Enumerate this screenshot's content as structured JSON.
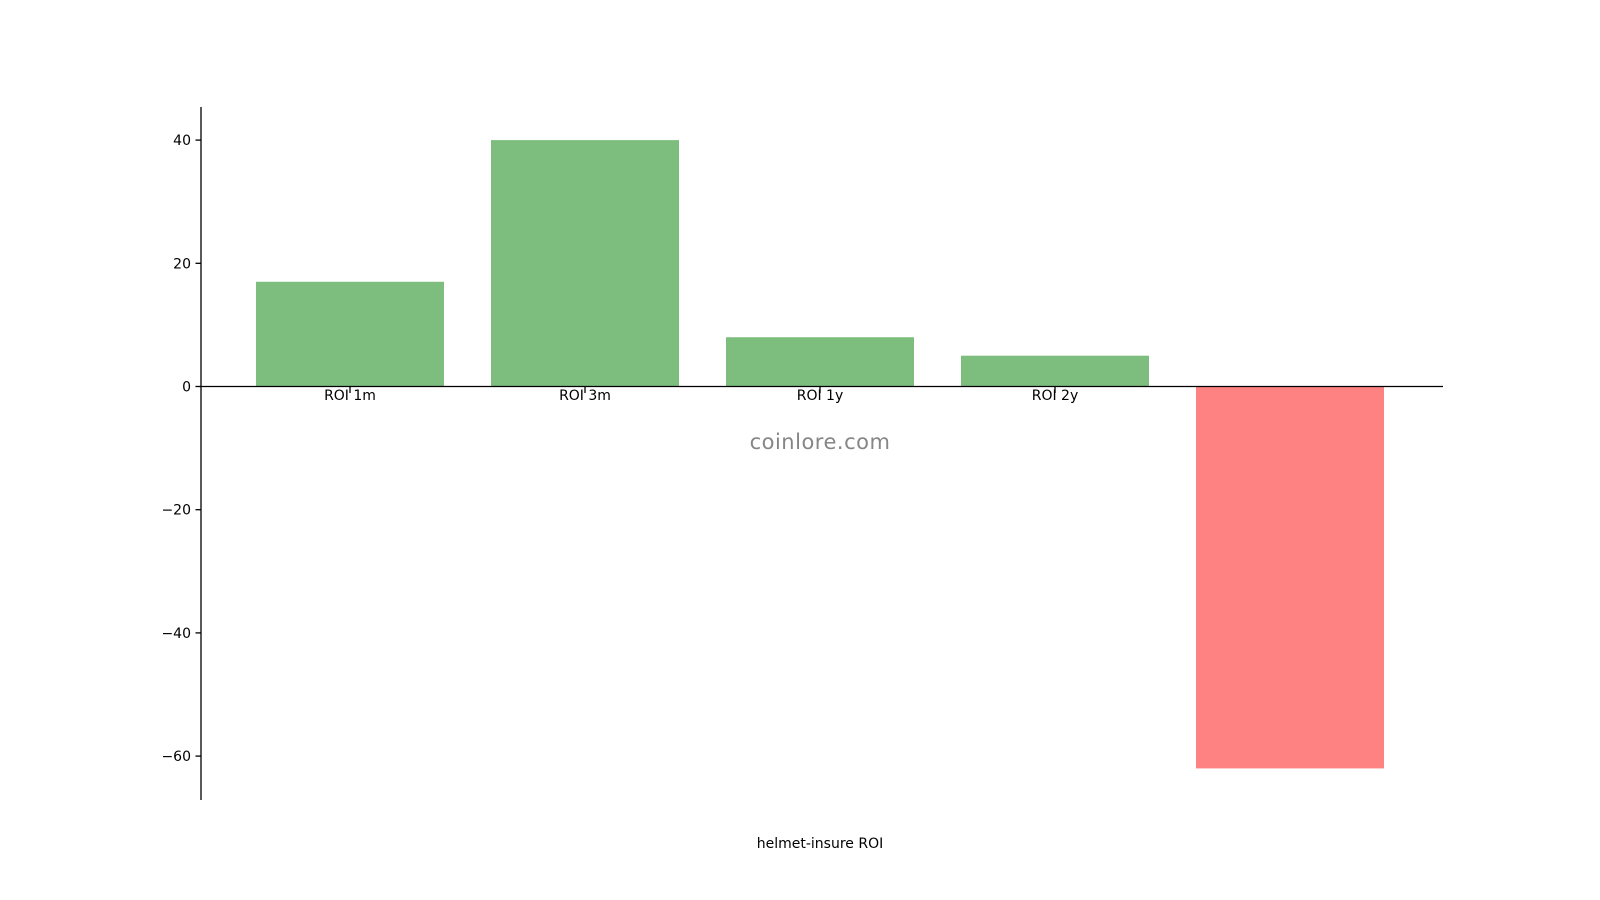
{
  "page": {
    "background_color": "#ffffff"
  },
  "chart_data": {
    "type": "bar",
    "title": "",
    "xlabel": "helmet-insure ROI",
    "ylabel": "",
    "watermark": "coinlore.com",
    "categories": [
      "ROI 1m",
      "ROI 3m",
      "ROI 1y",
      "ROI 2y",
      ""
    ],
    "values": [
      17,
      40,
      8,
      5,
      -62
    ],
    "series": [
      {
        "name": "helmet-insure ROI %",
        "values": [
          17,
          40,
          8,
          5,
          -62
        ]
      }
    ],
    "positive_color": "#7dbd7e",
    "negative_color": "#fd8281",
    "axis_color": "#000000",
    "text_color": "#000000",
    "watermark_color": "#868686",
    "ylim": [
      -67,
      45.5
    ],
    "yticks": [
      40,
      20,
      0,
      -20,
      -40,
      -60
    ],
    "ytick_labels": [
      "40",
      "20",
      "0",
      "−20",
      "−40",
      "−60"
    ],
    "grid": false,
    "legend": null,
    "bar_orientation": "vertical",
    "notes": "fifth bar has no category label"
  }
}
